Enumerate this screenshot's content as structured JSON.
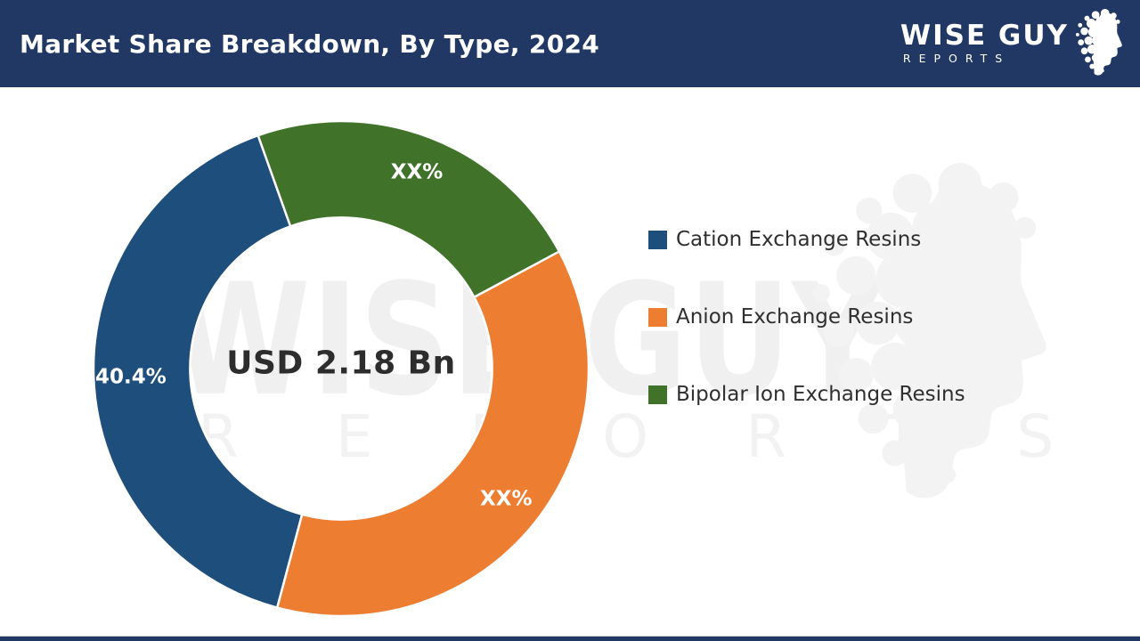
{
  "header": {
    "title": "Market Share Breakdown, By Type, 2024",
    "logo": {
      "name": "WISE GUY REPORTS",
      "line1": "WISE GUY",
      "line2": "REPORTS"
    }
  },
  "watermark": {
    "line1": "WISE GUY",
    "line2": "R E P O R T S"
  },
  "chart_data": {
    "type": "donut",
    "title": "Market Share Breakdown, By Type, 2024",
    "center_label": "USD 2.18 Bn",
    "legend_position": "right",
    "start_angle_deg": 109.6,
    "direction": "counterclockwise",
    "inner_radius_ratio": 0.61,
    "segments": [
      {
        "name": "Cation Exchange Resins",
        "pct": 40.4,
        "slice_label": "40.4%",
        "color": "#1e4e7c"
      },
      {
        "name": "Anion Exchange Resins",
        "pct": 37.0,
        "slice_label": "XX%",
        "color": "#ed7d31"
      },
      {
        "name": "Bipolar Ion Exchange Resins",
        "pct": 22.6,
        "slice_label": "XX%",
        "color": "#41722a"
      }
    ]
  },
  "colors": {
    "header_bg": "#213864",
    "bottom_bar": "#213864",
    "slice_label_text": "#ffffff",
    "center_text": "#2d2d2d",
    "legend_text": "#2f2f2f",
    "watermark": "#f0f0f0",
    "slice_gap": "#ffffff"
  }
}
